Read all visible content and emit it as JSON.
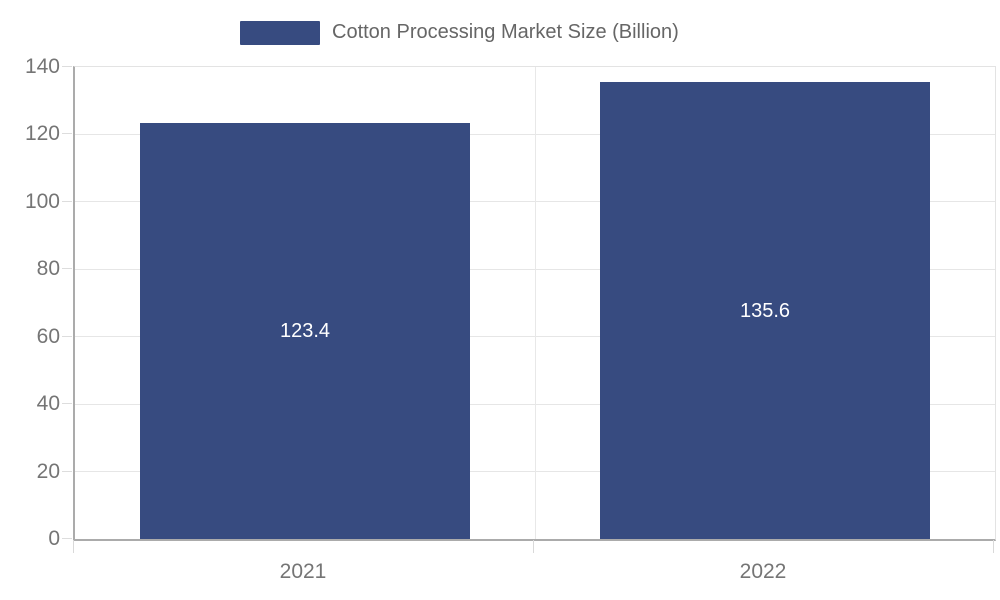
{
  "chart_data": {
    "type": "bar",
    "title": "",
    "legend": "Cotton Processing Market Size (Billion)",
    "legend_position": "top",
    "categories": [
      "2021",
      "2022"
    ],
    "series": [
      {
        "name": "Cotton Processing Market Size (Billion)",
        "values": [
          123.4,
          135.6
        ],
        "data_labels": [
          "123.4",
          "135.6"
        ]
      }
    ],
    "xlabel": "",
    "ylabel": "",
    "ylim": [
      0,
      140
    ],
    "yticks": [
      0,
      20,
      40,
      60,
      80,
      100,
      120,
      140
    ],
    "grid": true,
    "colors": {
      "bar": "#374b80",
      "bar_value_label": "#ffffff",
      "axis_text": "#757575",
      "legend_text": "#666666",
      "axis_line": "#ababab",
      "gridline": "#e6e6e6"
    }
  }
}
